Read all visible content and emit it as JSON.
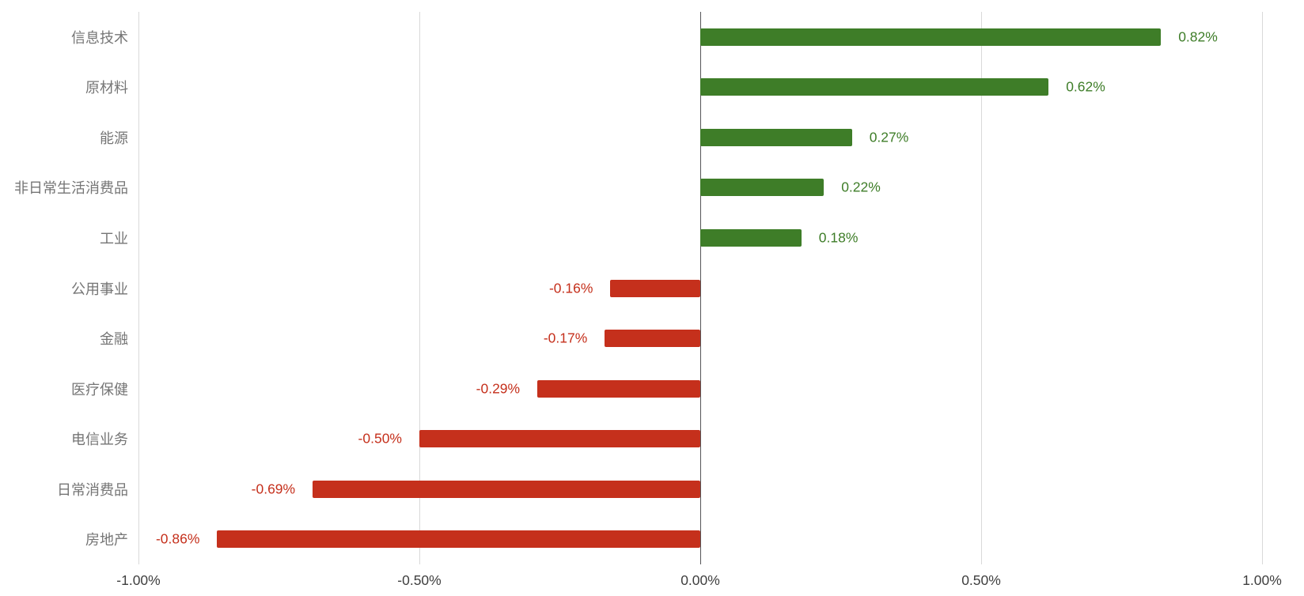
{
  "chart_data": {
    "type": "bar",
    "orientation": "horizontal",
    "title": "",
    "xlabel": "",
    "ylabel": "",
    "categories": [
      "信息技术",
      "原材料",
      "能源",
      "非日常生活消费品",
      "工业",
      "公用事业",
      "金融",
      "医疗保健",
      "电信业务",
      "日常消费品",
      "房地产"
    ],
    "values": [
      0.82,
      0.62,
      0.27,
      0.22,
      0.18,
      -0.16,
      -0.17,
      -0.29,
      -0.5,
      -0.69,
      -0.86
    ],
    "value_labels": [
      "0.82%",
      "0.62%",
      "0.27%",
      "0.22%",
      "0.18%",
      "-0.16%",
      "-0.17%",
      "-0.29%",
      "-0.50%",
      "-0.69%",
      "-0.86%"
    ],
    "x_ticks": [
      "-1.00%",
      "-0.50%",
      "0.00%",
      "0.50%",
      "1.00%"
    ],
    "x_tick_values": [
      -1,
      -0.5,
      0,
      0.5,
      1
    ],
    "xlim": [
      -1,
      1
    ],
    "grid": true,
    "legend": "none",
    "positive_color": "#3e7d28",
    "negative_color": "#c5301c",
    "category_label_color": "#757575",
    "axis_label_color": "#3f3f3f",
    "gridline_color": "#d9d9d9",
    "zero_line_color": "#555558",
    "background_color": "#ffffff"
  }
}
